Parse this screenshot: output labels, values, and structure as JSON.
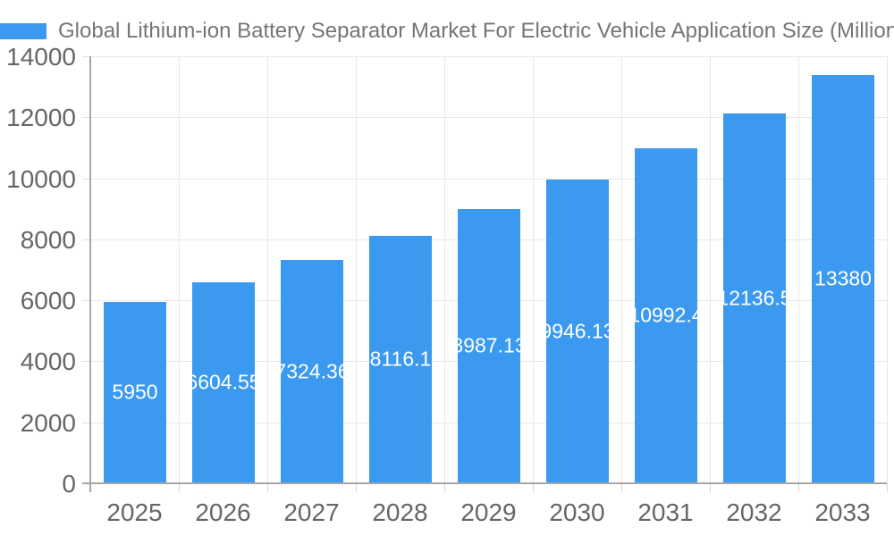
{
  "chart_data": {
    "type": "bar",
    "title": "Global Lithium-ion Battery Separator Market For Electric Vehicle Application Size (Million",
    "categories": [
      "2025",
      "2026",
      "2027",
      "2028",
      "2029",
      "2030",
      "2031",
      "2032",
      "2033"
    ],
    "values": [
      5950,
      6604.55,
      7324.36,
      8116.1,
      8987.13,
      9946.13,
      10992.4,
      12136.5,
      13380
    ],
    "bar_labels": [
      "5950",
      "6604.55",
      "7324.36",
      "8116.1",
      "8987.13",
      "9946.13",
      "10992.4",
      "12136.5",
      "13380"
    ],
    "xlabel": "",
    "ylabel": "",
    "ylim": [
      0,
      14000
    ],
    "yticks": [
      0,
      2000,
      4000,
      6000,
      8000,
      10000,
      12000,
      14000
    ],
    "grid": "on",
    "legend_position": "top-left",
    "colors": {
      "bar": "#3b9af0",
      "bar_label_text": "#ffffff",
      "title_text": "#757575",
      "axis_text": "#666666",
      "gridline": "#e8e8e8",
      "axis_line": "#a6a6a6"
    }
  }
}
